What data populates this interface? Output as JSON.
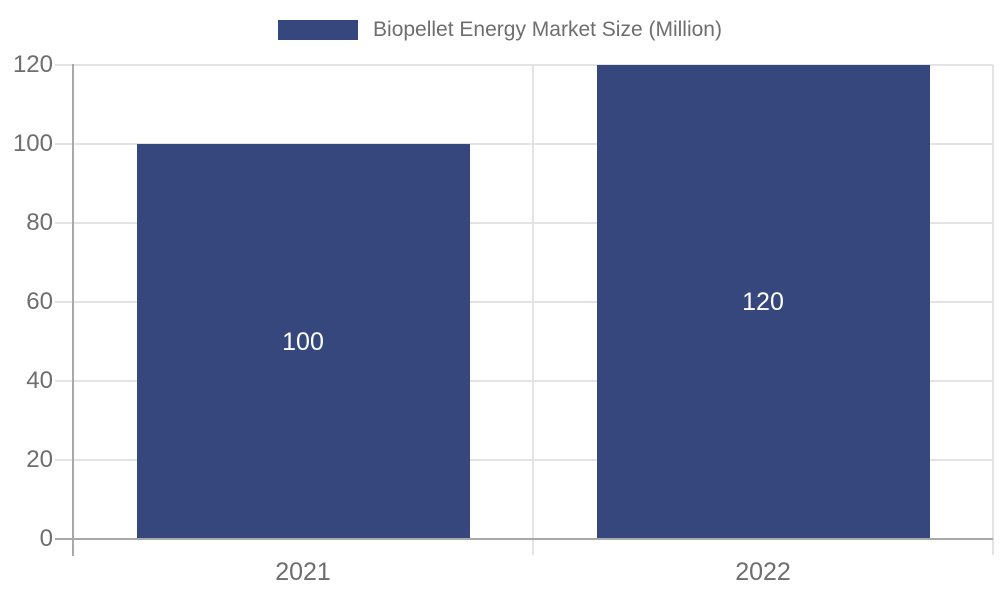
{
  "chart_data": {
    "type": "bar",
    "title": "",
    "legend": "Biopellet Energy Market Size (Million)",
    "legend_position": "top-center",
    "categories": [
      "2021",
      "2022"
    ],
    "values": [
      100,
      120
    ],
    "value_labels": [
      "100",
      "120"
    ],
    "xlabel": "",
    "ylabel": "",
    "ylim": [
      0,
      120
    ],
    "yticks": [
      0,
      20,
      40,
      60,
      80,
      100,
      120
    ],
    "grid": true,
    "colors": {
      "bar": "#36477E",
      "value_label": "#FFFFFF",
      "axis_line": "#A9A9A9",
      "gridline": "#E3E3E3",
      "text": "#6E6E6E",
      "background": "#FFFFFF"
    }
  }
}
